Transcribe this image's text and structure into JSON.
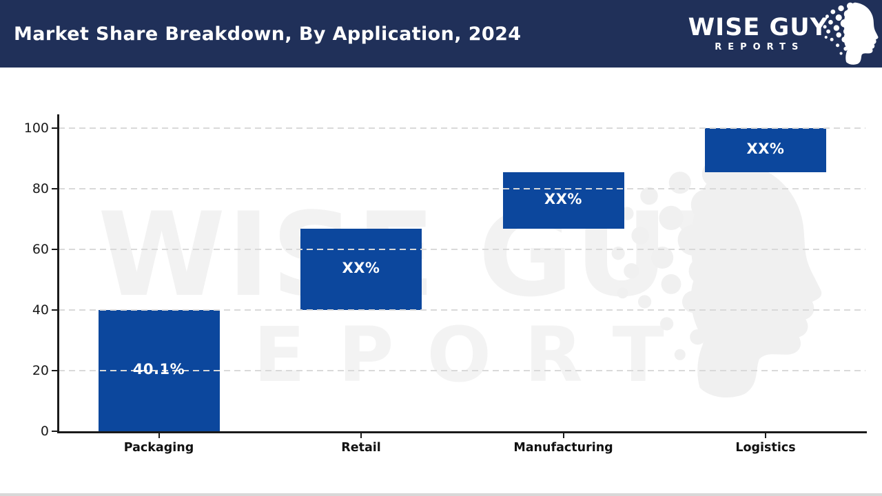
{
  "header": {
    "title": "Market Share Breakdown, By Application, 2024",
    "background": "#203059",
    "logo": {
      "line1": "WISE GUY",
      "line2": "REPORTS"
    }
  },
  "chart_data": {
    "type": "bar",
    "variant": "waterfall",
    "title": "Market Share Breakdown, By Application, 2024",
    "categories": [
      "Packaging",
      "Retail",
      "Manufacturing",
      "Logistics"
    ],
    "segments": [
      {
        "category": "Packaging",
        "start": 0,
        "end": 40.1,
        "label": "40.1%"
      },
      {
        "category": "Retail",
        "start": 40.1,
        "end": 66.8,
        "label": "XX%"
      },
      {
        "category": "Manufacturing",
        "start": 66.8,
        "end": 85.5,
        "label": "XX%"
      },
      {
        "category": "Logistics",
        "start": 85.5,
        "end": 100,
        "label": "XX%"
      }
    ],
    "yticks": [
      0,
      20,
      40,
      60,
      80,
      100
    ],
    "ylim": [
      0,
      104
    ],
    "grid": {
      "axis": "y",
      "style": "dashed",
      "color": "#d9d9d9",
      "drawn_over_bars": true
    },
    "bar_color": "#0c479d",
    "bar_label_color": "#ffffff",
    "axis_color": "#1a1a1a",
    "legend": "none",
    "watermark": {
      "line1": "WISE GUY",
      "line2": "REPORTS"
    }
  }
}
